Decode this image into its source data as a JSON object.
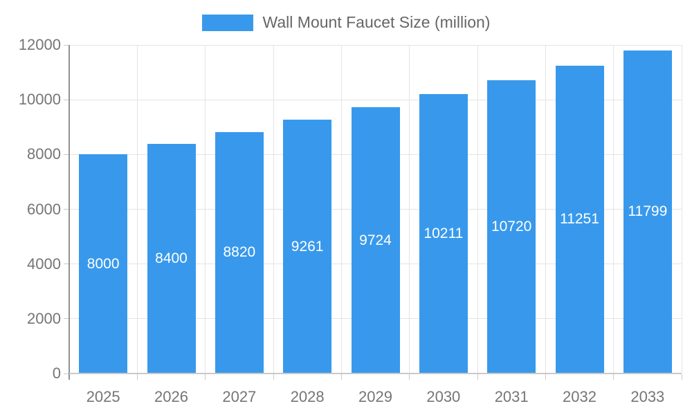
{
  "legend": {
    "label": "Wall Mount Faucet Size (million)",
    "swatch_color": "#3899EC"
  },
  "chart_data": {
    "type": "bar",
    "title": "Wall Mount Faucet Size (million)",
    "categories": [
      "2025",
      "2026",
      "2027",
      "2028",
      "2029",
      "2030",
      "2031",
      "2032",
      "2033"
    ],
    "series": [
      {
        "name": "Wall Mount Faucet Size (million)",
        "values": [
          8000,
          8400,
          8820,
          9261,
          9724,
          10211,
          10720,
          11251,
          11799
        ]
      }
    ],
    "xlabel": "",
    "ylabel": "",
    "ylim": [
      0,
      12000
    ],
    "yticks": [
      0,
      2000,
      4000,
      6000,
      8000,
      10000,
      12000
    ],
    "grid": true,
    "legend_position": "top",
    "bar_labels_inside": true
  },
  "colors": {
    "bar": "#3899EC",
    "bar_label": "#ffffff",
    "gridline": "#e4e4e4",
    "y_axis_line": "#919191",
    "x_axis_line": "#c9c9c9",
    "tick": "#c9c9c9",
    "tick_label": "#757575",
    "legend_text": "#666666",
    "background": "#ffffff"
  }
}
